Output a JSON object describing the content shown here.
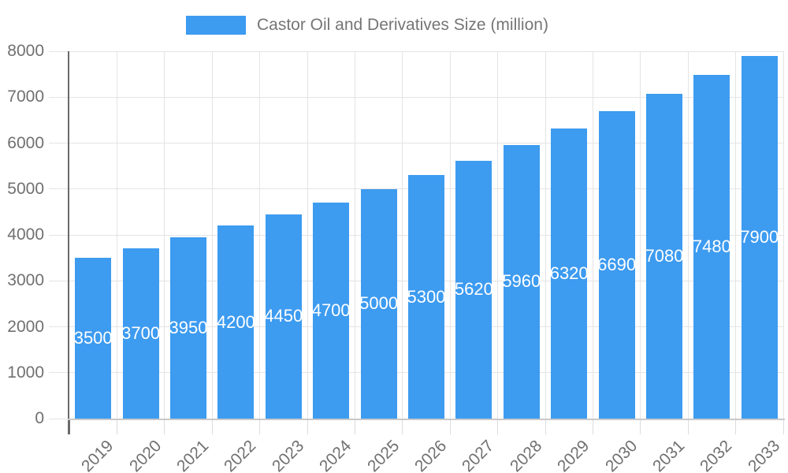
{
  "legend": {
    "label": "Castor Oil and Derivatives Size (million)"
  },
  "chart_data": {
    "type": "bar",
    "title": "Castor Oil and Derivatives Size (million)",
    "categories": [
      "2019",
      "2020",
      "2021",
      "2022",
      "2023",
      "2024",
      "2025",
      "2026",
      "2027",
      "2028",
      "2029",
      "2030",
      "2031",
      "2032",
      "2033"
    ],
    "series": [
      {
        "name": "Castor Oil and Derivatives Size (million)",
        "values": [
          3500,
          3700,
          3950,
          4200,
          4450,
          4700,
          5000,
          5300,
          5620,
          5960,
          6320,
          6690,
          7080,
          7480,
          7900
        ]
      }
    ],
    "xlabel": "",
    "ylabel": "",
    "ylim": [
      0,
      8000
    ],
    "y_ticks": [
      0,
      1000,
      2000,
      3000,
      4000,
      5000,
      6000,
      7000,
      8000
    ],
    "y_tick_labels": [
      "0",
      "1000",
      "2000",
      "3000",
      "4000",
      "5000",
      "6000",
      "7000",
      "8000"
    ],
    "grid": "both",
    "legend_position": "top-center",
    "bar_label_position": "inside-center",
    "x_label_rotation_deg": -45,
    "colors": {
      "bar": "#3d9bf0",
      "grid": "#e4e4e4",
      "axis_line": "#6a6a6a",
      "x_axis_line": "#c9c9c9",
      "tick": "#dcdcdc",
      "axis_text": "#707070",
      "legend_text": "#757575",
      "bar_label": "#ffffff",
      "background": "#ffffff"
    }
  }
}
